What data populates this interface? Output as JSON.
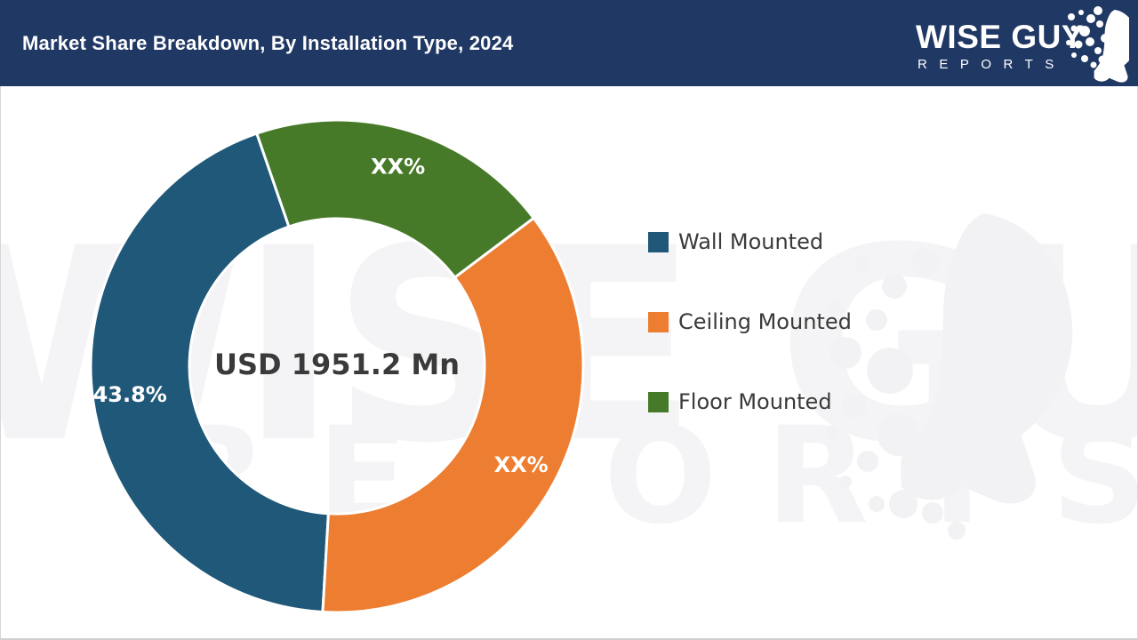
{
  "header": {
    "title": "Market Share Breakdown, By Installation Type, 2024",
    "logo": {
      "line1": "WISE GUY",
      "line2": "REPORTS"
    }
  },
  "watermark": {
    "line1": "WISE GUY",
    "line2": "REPORTS"
  },
  "colors": {
    "header_bg": "#203864",
    "wall_mounted": "#1f5879",
    "ceiling_mounted": "#ed7d31",
    "floor_mounted": "#467a28",
    "text_dark": "#3a3a3a",
    "watermark": "#f2f2f4"
  },
  "chart_data": {
    "type": "pie",
    "title": "Market Share Breakdown, By Installation Type, 2024",
    "donut": true,
    "center_label": "USD 1951.2 Mn",
    "start_angle_deg": 109,
    "counterclockwise": true,
    "legend_position": "right",
    "segments": [
      {
        "label": "Wall Mounted",
        "value_pct": 43.8,
        "display": "43.8%",
        "color": "#1f5879"
      },
      {
        "label": "Ceiling Mounted",
        "value_pct": 36.2,
        "display": "XX%",
        "color": "#ed7d31"
      },
      {
        "label": "Floor Mounted",
        "value_pct": 20.0,
        "display": "XX%",
        "color": "#467a28"
      }
    ]
  }
}
